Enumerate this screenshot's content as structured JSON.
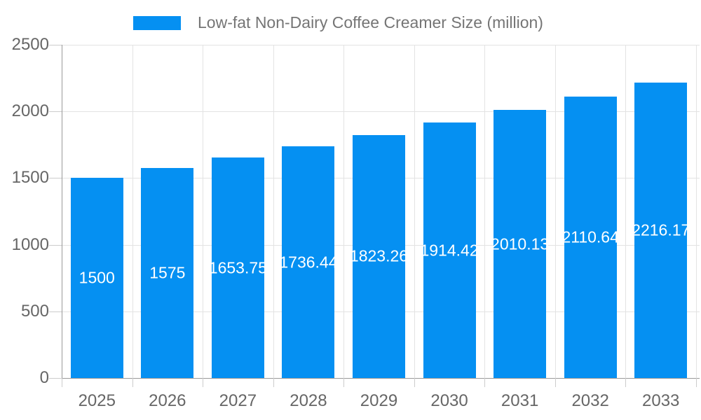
{
  "chart_data": {
    "type": "bar",
    "title": "Low-fat Non-Dairy Coffee Creamer Size (million)",
    "categories": [
      "2025",
      "2026",
      "2027",
      "2028",
      "2029",
      "2030",
      "2031",
      "2032",
      "2033"
    ],
    "values": [
      1500,
      1575,
      1653.75,
      1736.44,
      1823.26,
      1914.42,
      2010.13,
      2110.64,
      2216.17
    ],
    "value_labels": [
      "1500",
      "1575",
      "1653.75",
      "1736.44",
      "1823.26",
      "1914.42",
      "2010.13",
      "2110.64",
      "2216.17"
    ],
    "xlabel": "",
    "ylabel": "",
    "ylim": [
      0,
      2500
    ],
    "yticks": [
      0,
      500,
      1000,
      1500,
      2000,
      2500
    ],
    "ytick_labels": [
      "0",
      "500",
      "1000",
      "1500",
      "2000",
      "2500"
    ],
    "grid": true,
    "legend_position": "top-center",
    "colors": {
      "bar": "#0590f2",
      "axis_label": "#666666",
      "legend_text": "#757575",
      "grid_line": "#e3e3e3",
      "axis_line": "#999999",
      "tick_line": "#cccccc",
      "value_label": "#ffffff",
      "background": "#ffffff"
    }
  }
}
